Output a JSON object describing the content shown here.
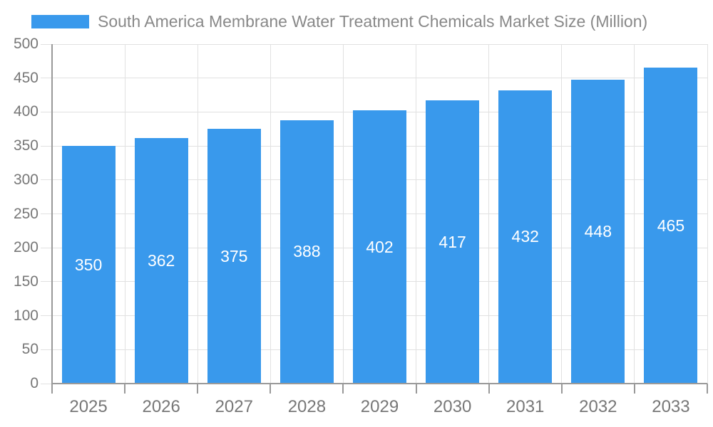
{
  "colors": {
    "background": "#FFFFFF",
    "bar": "#3999EC",
    "grid": "#E1E1E1",
    "axis_line": "#999999",
    "title_text": "#888888",
    "axis_label_text": "#777777",
    "bar_value_text": "#FFFFFF"
  },
  "legend": {
    "label": "South America Membrane Water Treatment Chemicals Market Size (Million)",
    "swatch_color": "#3999EC"
  },
  "chart_data": {
    "type": "bar",
    "title": "South America Membrane Water Treatment Chemicals Market Size (Million)",
    "categories": [
      "2025",
      "2026",
      "2027",
      "2028",
      "2029",
      "2030",
      "2031",
      "2032",
      "2033"
    ],
    "values": [
      350,
      362,
      375,
      388,
      402,
      417,
      432,
      448,
      465
    ],
    "series": [
      {
        "name": "South America Membrane Water Treatment Chemicals Market Size (Million)",
        "values": [
          350,
          362,
          375,
          388,
          402,
          417,
          432,
          448,
          465
        ]
      }
    ],
    "xlabel": "",
    "ylabel": "",
    "ylim": [
      0,
      500
    ],
    "yticks": [
      0,
      50,
      100,
      150,
      200,
      250,
      300,
      350,
      400,
      450,
      500
    ],
    "grid": true,
    "legend_position": "top-left",
    "bar_value_labels": true
  }
}
